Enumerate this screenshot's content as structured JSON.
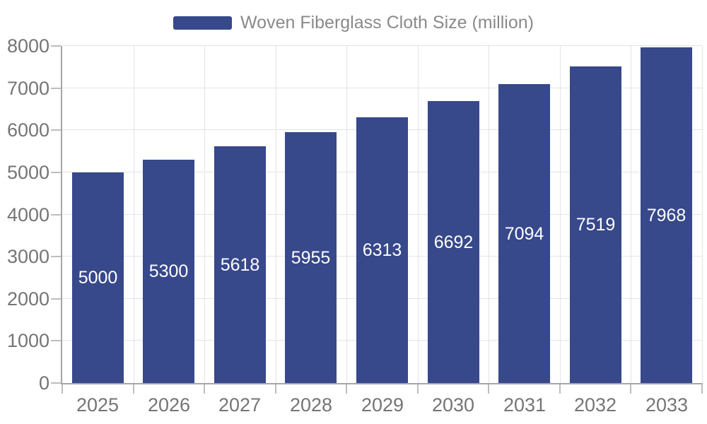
{
  "chart_data": {
    "type": "bar",
    "title": "",
    "xlabel": "",
    "ylabel": "",
    "categories": [
      "2025",
      "2026",
      "2027",
      "2028",
      "2029",
      "2030",
      "2031",
      "2032",
      "2033"
    ],
    "series": [
      {
        "name": "Woven Fiberglass Cloth Size (million)",
        "values": [
          5000,
          5300,
          5618,
          5955,
          6313,
          6692,
          7094,
          7519,
          7968
        ],
        "color": "#37488b"
      }
    ],
    "ylim": [
      0,
      8000
    ],
    "yticks": [
      0,
      1000,
      2000,
      3000,
      4000,
      5000,
      6000,
      7000,
      8000
    ],
    "grid": true,
    "legend": {
      "position": "top-center",
      "labels": [
        "Woven Fiberglass Cloth Size (million)"
      ]
    },
    "value_labels": {
      "show": true,
      "position": "inside-center",
      "color": "#ffffff"
    },
    "colors": {
      "bar": "#37488b",
      "bar_value_label": "#ffffff",
      "grid_line": "#e4e4e4",
      "axis_line": "#a6a6a6",
      "tick": "#bdbdbd",
      "axis_label": "#757575",
      "legend_text": "#8a8a8a",
      "background": "#ffffff"
    }
  }
}
